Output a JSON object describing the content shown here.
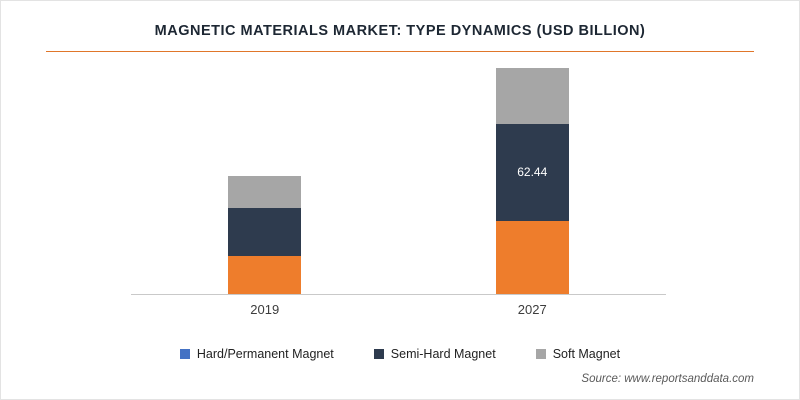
{
  "title": "MAGNETIC MATERIALS MARKET: TYPE DYNAMICS (USD BILLION)",
  "source": "Source: www.reportsanddata.com",
  "colors": {
    "title_text": "#1d2733",
    "title_rule": "#e0762a",
    "axis_line": "#c9c9c9",
    "data_label_text": "#ffffff"
  },
  "chart_data": {
    "type": "bar",
    "stacked": true,
    "title": "MAGNETIC MATERIALS MARKET: TYPE DYNAMICS (USD BILLION)",
    "xlabel": "",
    "ylabel": "",
    "y_axis_visible": false,
    "grid": false,
    "legend_position": "bottom",
    "categories": [
      "2019",
      "2027"
    ],
    "series": [
      {
        "name": "Hard/Permanent Magnet",
        "legend_color": "#4472c4",
        "bar_color": "#ee7d2c",
        "values": [
          24.5,
          47.2
        ],
        "labels": [
          "",
          ""
        ]
      },
      {
        "name": "Semi-Hard Magnet",
        "legend_color": "#2e3b4e",
        "bar_color": "#2e3b4e",
        "values": [
          31.0,
          62.44
        ],
        "labels": [
          "",
          "62.44"
        ]
      },
      {
        "name": "Soft Magnet",
        "legend_color": "#a6a6a6",
        "bar_color": "#a6a6a6",
        "values": [
          20.5,
          36.0
        ],
        "labels": [
          "",
          ""
        ]
      }
    ]
  }
}
